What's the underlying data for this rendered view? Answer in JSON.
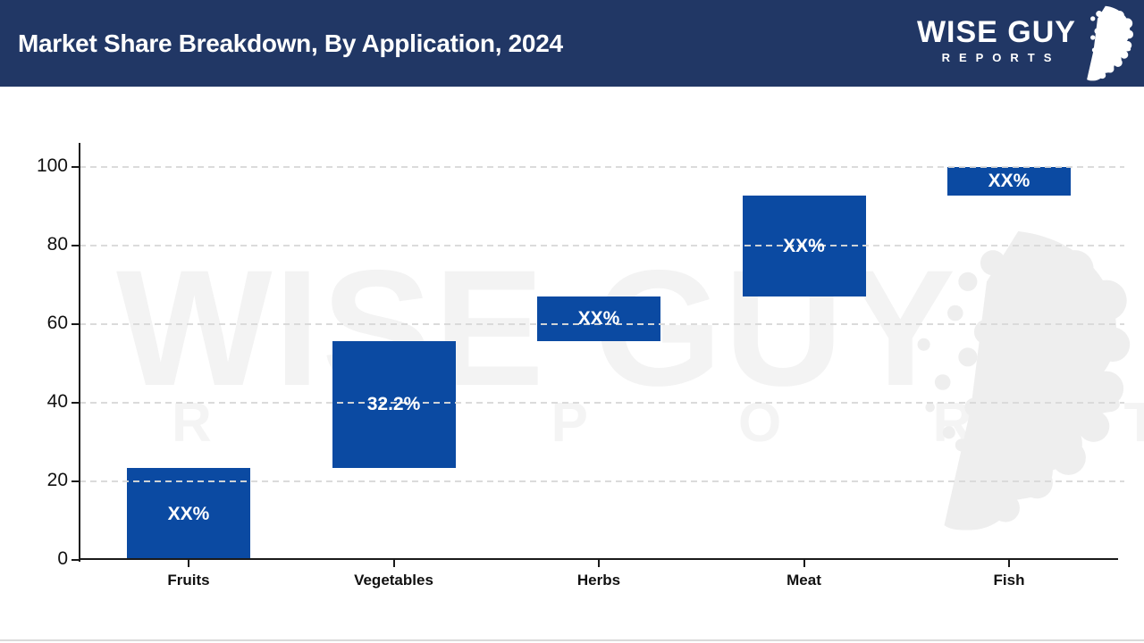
{
  "header": {
    "title": "Market Share Breakdown, By Application, 2024",
    "logo": {
      "line1": "WISE GUY",
      "line2": "REPORTS"
    }
  },
  "watermark": {
    "line1": "WISE GUY",
    "line2": "R E P O R T S"
  },
  "colors": {
    "header_bg": "#213765",
    "bar": "#0B4AA2",
    "grid": "#D9D9D9",
    "axis": "#1A1A1A",
    "bar_label_text": "#FFFFFF",
    "watermark_text": "#F3F3F3"
  },
  "chart_data": {
    "type": "bar",
    "subtype": "waterfall-floating",
    "title": "Market Share Breakdown, By Application, 2024",
    "categories": [
      "Fruits",
      "Vegetables",
      "Herbs",
      "Meat",
      "Fish"
    ],
    "segments": [
      {
        "category": "Fruits",
        "start": 0,
        "end": 23.4,
        "label": "XX%"
      },
      {
        "category": "Vegetables",
        "start": 23.4,
        "end": 55.6,
        "label": "32.2%"
      },
      {
        "category": "Herbs",
        "start": 55.6,
        "end": 67.0,
        "label": "XX%"
      },
      {
        "category": "Meat",
        "start": 67.0,
        "end": 92.7,
        "label": "XX%"
      },
      {
        "category": "Fish",
        "start": 92.7,
        "end": 100,
        "label": "XX%"
      }
    ],
    "yticks": [
      0,
      20,
      40,
      60,
      80,
      100
    ],
    "ylim": [
      0,
      105
    ],
    "xlabel": "",
    "ylabel": "",
    "grid": "dashed-horizontal-over-bars",
    "legend": "none"
  }
}
